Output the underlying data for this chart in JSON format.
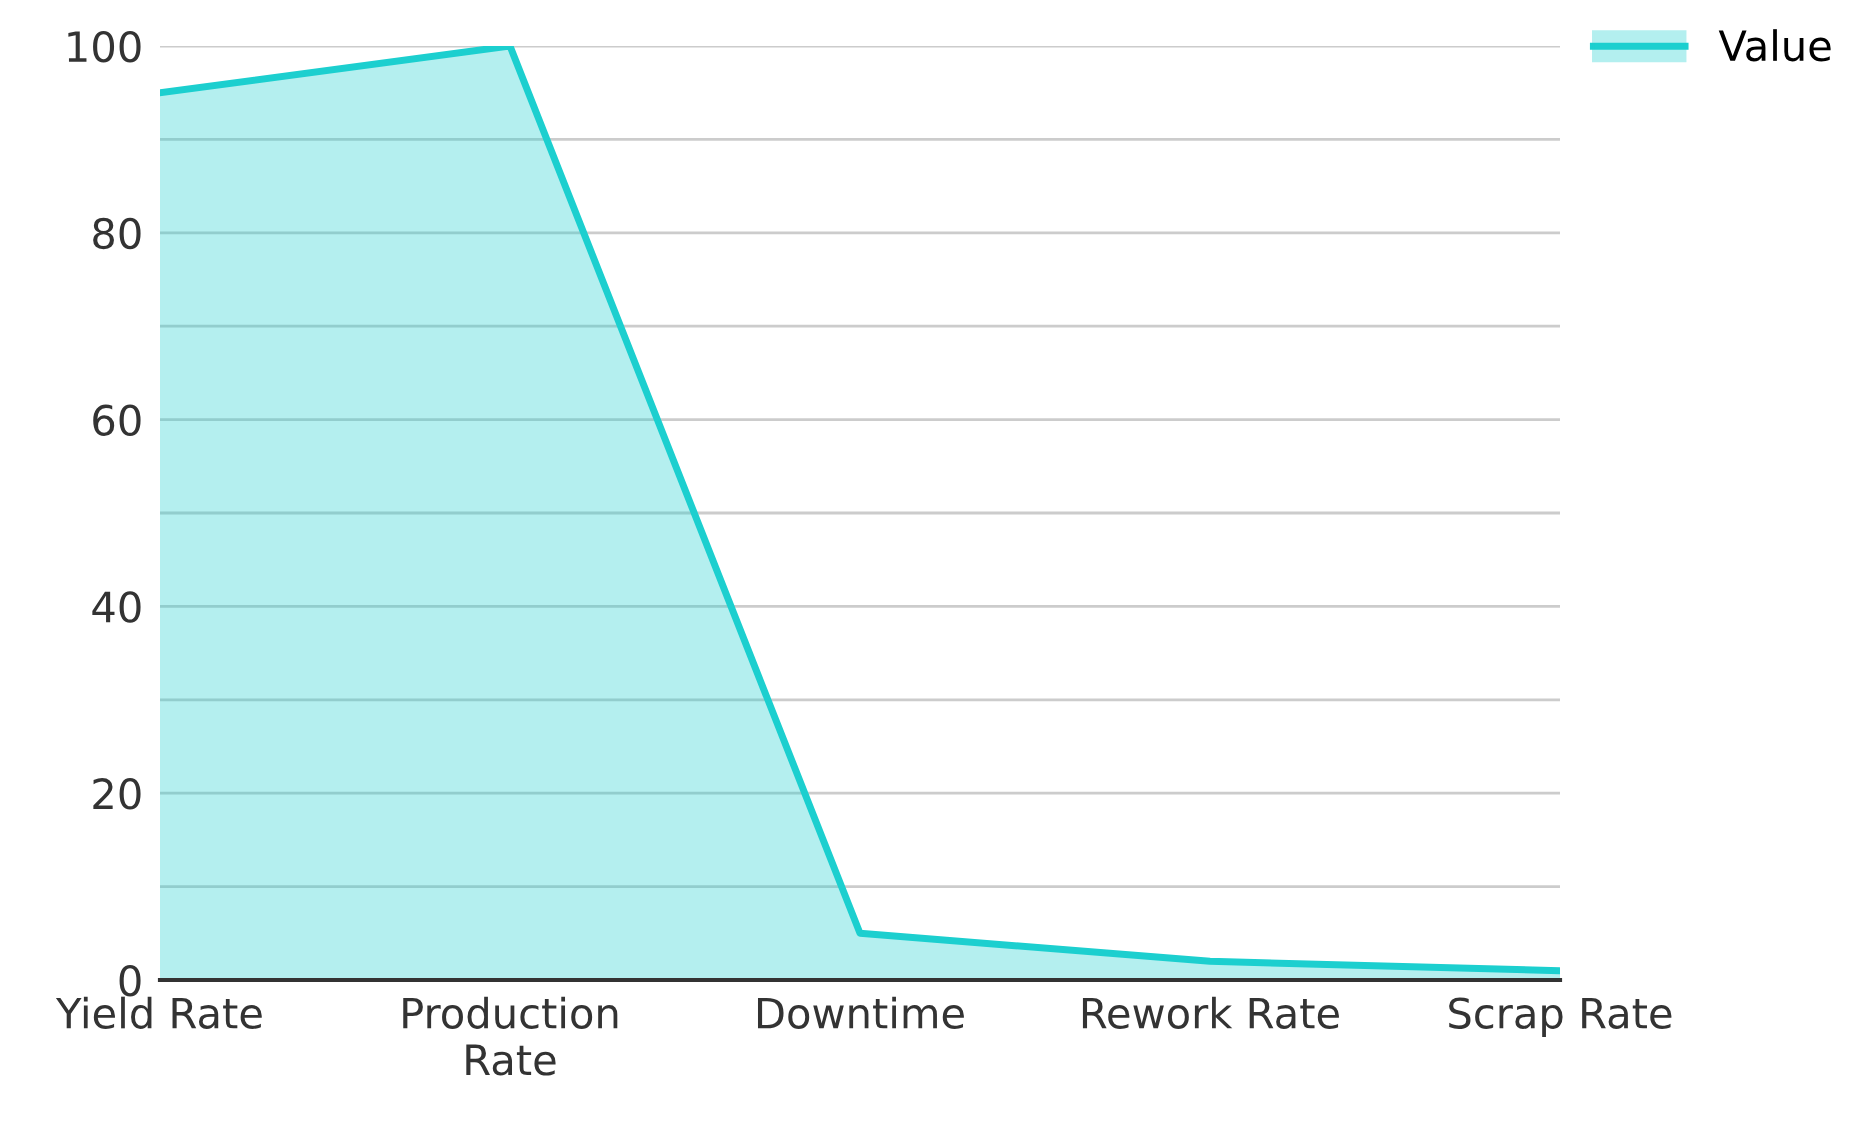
{
  "chart_data": {
    "type": "area",
    "categories": [
      "Yield Rate",
      "Production\nRate",
      "Downtime",
      "Rework Rate",
      "Scrap Rate"
    ],
    "series": [
      {
        "name": "Value",
        "color": "#1ccfcf",
        "values": [
          95,
          100,
          5,
          2,
          1
        ]
      }
    ],
    "ylim": [
      0,
      100
    ],
    "yticks": [
      0,
      {
        "value": 10,
        "label": null
      },
      20,
      {
        "value": 30,
        "label": null
      },
      40,
      {
        "value": 50,
        "label": null
      },
      60,
      {
        "value": 70,
        "label": null
      },
      80,
      {
        "value": 90,
        "label": null
      },
      100
    ],
    "grid": "y",
    "legend": "top right"
  }
}
